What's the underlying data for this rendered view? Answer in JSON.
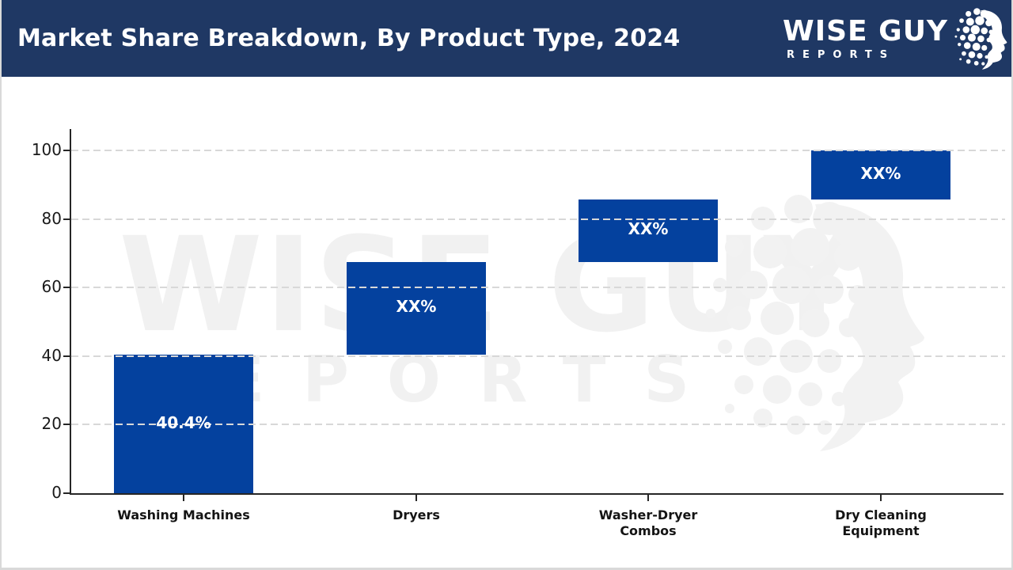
{
  "page": {
    "background": "#ffffff",
    "edge_border_color": "#d9d9d9"
  },
  "header": {
    "background": "#1f3864",
    "title": "Market Share Breakdown, By Product Type, 2024",
    "logo": {
      "line1": "WISE GUY",
      "line2": "REPORTS"
    }
  },
  "watermark": {
    "line1": "WISE GUY",
    "line2": "REPORTS",
    "color": "#f1f1f1"
  },
  "chart_data": {
    "type": "bar",
    "subtype": "waterfall",
    "title": "Market Share Breakdown, By Product Type, 2024",
    "xlabel": "",
    "ylabel": "",
    "ylim": [
      0,
      106
    ],
    "yticks": [
      0,
      20,
      40,
      60,
      80,
      100
    ],
    "grid": "horizontal-dashed",
    "grid_color": "#d8d8d8",
    "axis_color": "#262626",
    "bar_color": "#04419e",
    "bar_label_color": "#ffffff",
    "segments": [
      {
        "category": "Washing Machines",
        "category_lines": [
          "Washing Machines"
        ],
        "start": 0,
        "end": 40.4,
        "value": 40.4,
        "label": "40.4%"
      },
      {
        "category": "Dryers",
        "category_lines": [
          "Dryers"
        ],
        "start": 40.4,
        "end": 67.5,
        "value": 27.1,
        "label": "XX%"
      },
      {
        "category": "Washer-Dryer Combos",
        "category_lines": [
          "Washer-Dryer",
          "Combos"
        ],
        "start": 67.5,
        "end": 85.7,
        "value": 18.2,
        "label": "XX%"
      },
      {
        "category": "Dry Cleaning Equipment",
        "category_lines": [
          "Dry Cleaning",
          "Equipment"
        ],
        "start": 85.7,
        "end": 100,
        "value": 14.3,
        "label": "XX%"
      }
    ]
  }
}
